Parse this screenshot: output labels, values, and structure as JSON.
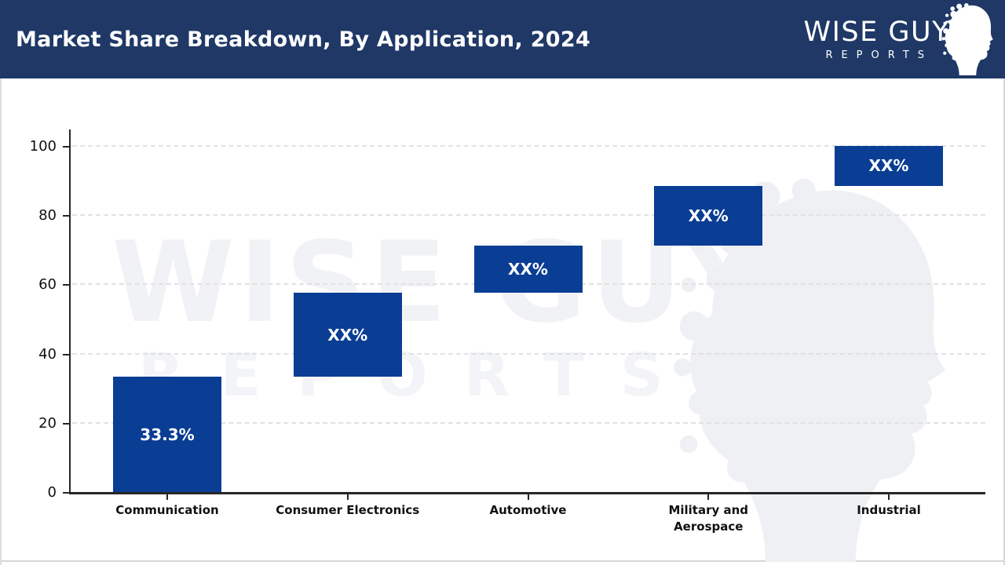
{
  "header": {
    "title": "Market Share Breakdown, By Application, 2024",
    "logo": {
      "primary": "WISE GUY",
      "secondary": "REPORTS"
    }
  },
  "watermark": {
    "primary": "WISE GUY",
    "secondary": "REPORTS"
  },
  "chart_data": {
    "type": "bar",
    "subtype": "floating-waterfall",
    "title": "Market Share Breakdown, By Application, 2024",
    "categories": [
      "Communication",
      "Consumer Electronics",
      "Automotive",
      "Military and Aerospace",
      "Industrial"
    ],
    "segments": [
      {
        "category": "Communication",
        "start": 0,
        "end": 33.3,
        "label": "33.3%"
      },
      {
        "category": "Consumer Electronics",
        "start": 33.3,
        "end": 57.5,
        "label": "XX%"
      },
      {
        "category": "Automotive",
        "start": 57.5,
        "end": 71.3,
        "label": "XX%"
      },
      {
        "category": "Military and Aerospace",
        "start": 71.3,
        "end": 88.5,
        "label": "XX%"
      },
      {
        "category": "Industrial",
        "start": 88.5,
        "end": 100,
        "label": "XX%"
      }
    ],
    "yticks": [
      0,
      20,
      40,
      60,
      80,
      100
    ],
    "ylim": [
      0,
      100
    ],
    "xlabel": "",
    "ylabel": "",
    "grid": "horizontal-dashed",
    "legend": "none",
    "bar_color": "#0a3d94",
    "value_label_color": "#ffffff"
  },
  "colors": {
    "header_bg": "#1f3866",
    "bar": "#0a3d94",
    "axis": "#262626",
    "gridline": "#e1e1e1",
    "watermark": "#f1f2f5"
  }
}
